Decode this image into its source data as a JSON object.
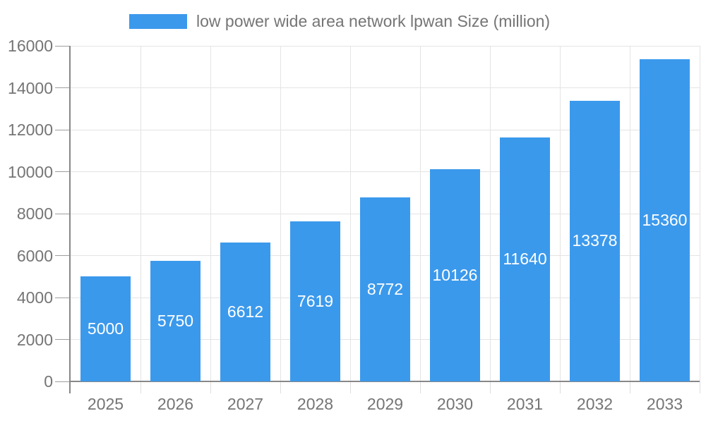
{
  "chart_data": {
    "type": "bar",
    "title": "low power wide area network lpwan Size (million)",
    "categories": [
      "2025",
      "2026",
      "2027",
      "2028",
      "2029",
      "2030",
      "2031",
      "2032",
      "2033"
    ],
    "values": [
      5000,
      5750,
      6612,
      7619,
      8772,
      10126,
      11640,
      13378,
      15360
    ],
    "series_name": "low power wide area network lpwan Size (million)",
    "xlabel": "",
    "ylabel": "",
    "ylim": [
      0,
      16000
    ],
    "yticks": [
      0,
      2000,
      4000,
      6000,
      8000,
      10000,
      12000,
      14000,
      16000
    ],
    "grid": true,
    "legend_position": "top",
    "value_labels": "inside-center",
    "colors": {
      "bar": "#3b99ec",
      "value_label": "#ffffff",
      "axis_text": "#757575",
      "axis_line": "#888888",
      "tick_line": "#9e9e9e",
      "boundary_tick_line": "#dddddd",
      "gridline": "#e4e4e4",
      "background": "#ffffff"
    }
  }
}
